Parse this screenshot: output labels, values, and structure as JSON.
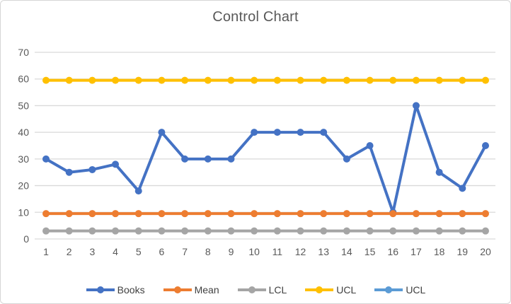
{
  "chart_data": {
    "type": "line",
    "title": "Control Chart",
    "xlabel": "",
    "ylabel": "",
    "x_categories": [
      "1",
      "2",
      "3",
      "4",
      "5",
      "6",
      "7",
      "8",
      "9",
      "10",
      "11",
      "12",
      "13",
      "14",
      "15",
      "16",
      "17",
      "18",
      "19",
      "20"
    ],
    "ylim": [
      0,
      70
    ],
    "ytick_step": 10,
    "ytick_labels": [
      "0",
      "10",
      "20",
      "30",
      "40",
      "50",
      "60",
      "70"
    ],
    "grid": true,
    "legend_position": "bottom",
    "series": [
      {
        "name": "Books",
        "color": "#4472C4",
        "values": [
          30,
          25,
          26,
          28,
          18,
          40,
          30,
          30,
          30,
          40,
          40,
          40,
          40,
          30,
          35,
          10,
          50,
          25,
          19,
          35
        ]
      },
      {
        "name": "Mean",
        "color": "#ED7D31",
        "values": [
          9.5,
          9.5,
          9.5,
          9.5,
          9.5,
          9.5,
          9.5,
          9.5,
          9.5,
          9.5,
          9.5,
          9.5,
          9.5,
          9.5,
          9.5,
          9.5,
          9.5,
          9.5,
          9.5,
          9.5
        ]
      },
      {
        "name": "LCL",
        "color": "#A5A5A5",
        "values": [
          3,
          3,
          3,
          3,
          3,
          3,
          3,
          3,
          3,
          3,
          3,
          3,
          3,
          3,
          3,
          3,
          3,
          3,
          3,
          3
        ]
      },
      {
        "name": "UCL",
        "color": "#FFC000",
        "values": [
          59.5,
          59.5,
          59.5,
          59.5,
          59.5,
          59.5,
          59.5,
          59.5,
          59.5,
          59.5,
          59.5,
          59.5,
          59.5,
          59.5,
          59.5,
          59.5,
          59.5,
          59.5,
          59.5,
          59.5
        ]
      },
      {
        "name": "UCL",
        "color": "#5B9BD5",
        "values": []
      }
    ],
    "colors": {
      "gridline": "#D9D9D9",
      "axis_text": "#595959",
      "title_text": "#595959",
      "legend_text": "#404040"
    }
  }
}
